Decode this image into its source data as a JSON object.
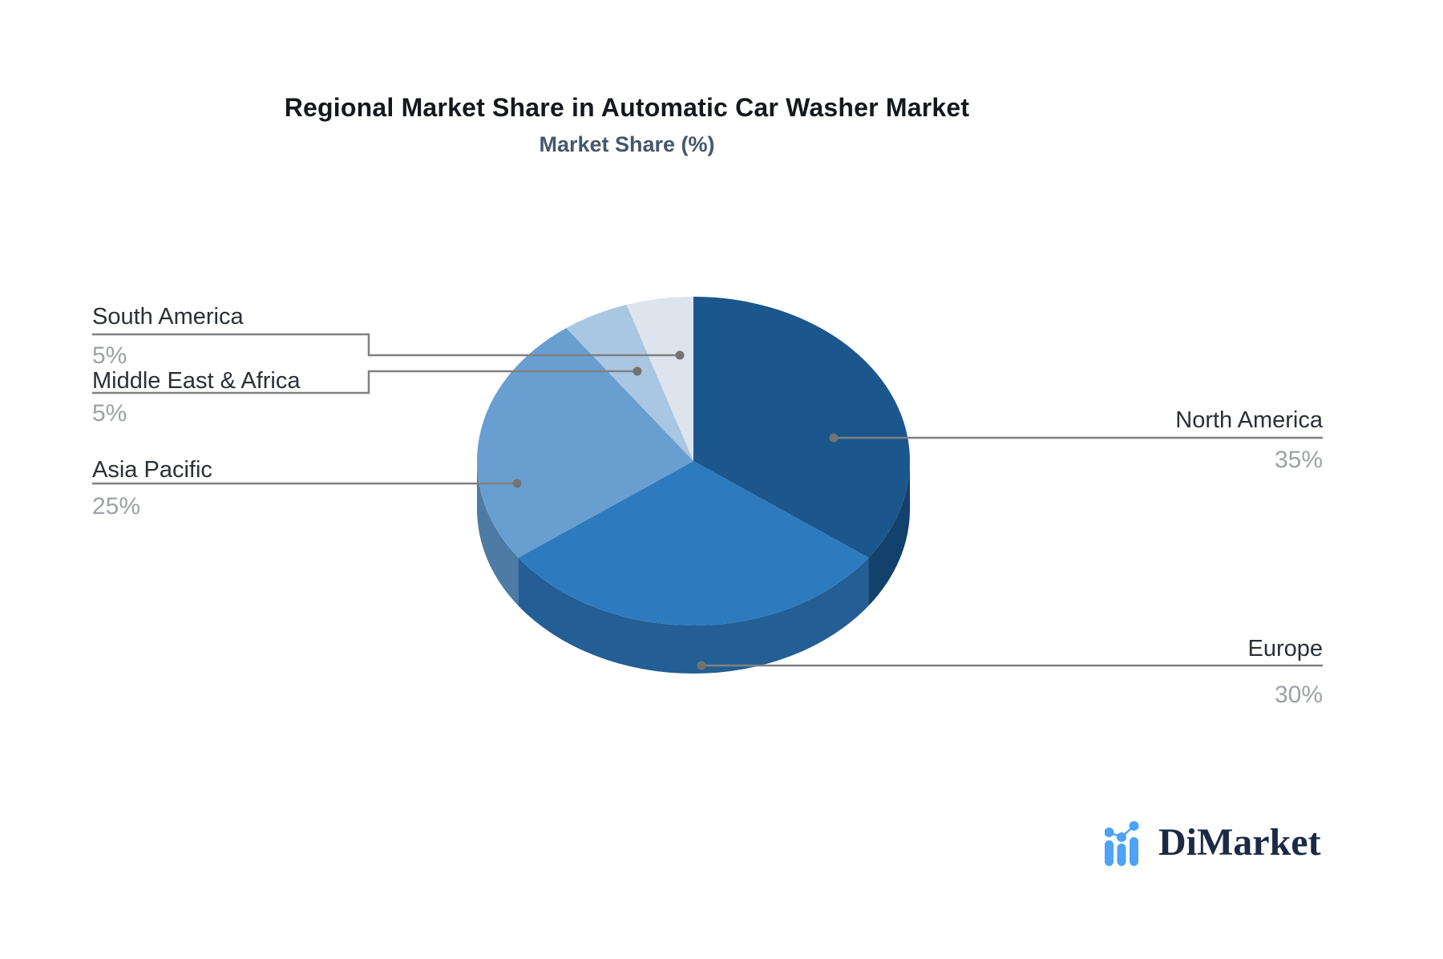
{
  "chart_data": {
    "type": "pie",
    "title": "Regional Market Share in Automatic Car Washer Market",
    "subtitle": "Market Share (%)",
    "unit": "%",
    "start_angle_deg": 0,
    "direction": "clockwise",
    "legend": "none",
    "labels_outside": true,
    "effect": "3d-depth",
    "slices": [
      {
        "label": "North America",
        "value": 35,
        "display": "35%",
        "color": "#1b578c",
        "side_color": "#12416b"
      },
      {
        "label": "Europe",
        "value": 30,
        "display": "30%",
        "color": "#2e7abf",
        "side_color": "#235e94"
      },
      {
        "label": "Asia Pacific",
        "value": 25,
        "display": "25%",
        "color": "#699fd0",
        "side_color": "#4e7ba3"
      },
      {
        "label": "Middle East & Africa",
        "value": 5,
        "display": "5%",
        "color": "#a9c6e3",
        "side_color": "#8298ad"
      },
      {
        "label": "South America",
        "value": 5,
        "display": "5%",
        "color": "#dde4ee",
        "side_color": "#aab4c2"
      }
    ]
  },
  "styles": {
    "leader_line_color": "#808080",
    "leader_dot_color": "#737373",
    "label_text_color": "#2b2f36",
    "percent_text_color": "#9da1a6"
  },
  "branding": {
    "logo_text": "DiMarket",
    "logo_icon": "bar-chart-trend-icon",
    "logo_text_color": "#1b2a45",
    "logo_icon_color": "#4da3f7"
  }
}
